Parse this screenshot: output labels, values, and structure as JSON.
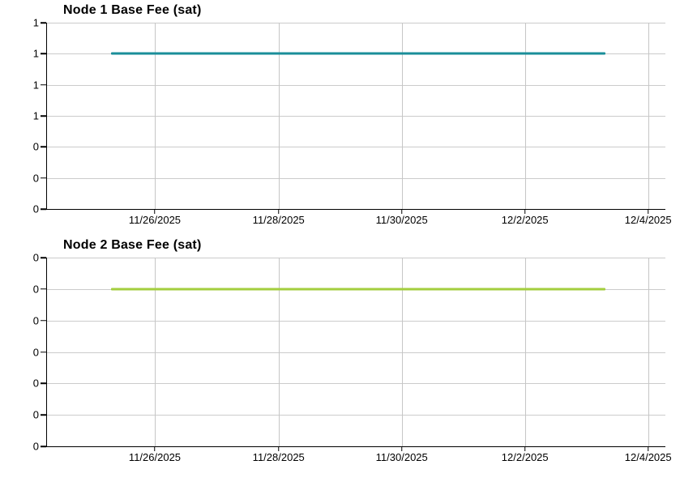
{
  "charts": [
    {
      "title": "Node 1 Base Fee (sat)",
      "line_color": "#1a8e99",
      "y_labels": [
        "1",
        "1",
        "1",
        "1",
        "0",
        "0",
        "0"
      ],
      "x_labels": [
        "11/26/2025",
        "11/28/2025",
        "11/30/2025",
        "12/2/2025",
        "12/4/2025"
      ]
    },
    {
      "title": "Node 2 Base Fee (sat)",
      "line_color": "#a3ce3e",
      "y_labels": [
        "0",
        "0",
        "0",
        "0",
        "0",
        "0",
        "0"
      ],
      "x_labels": [
        "11/26/2025",
        "11/28/2025",
        "11/30/2025",
        "12/2/2025",
        "12/4/2025"
      ]
    }
  ],
  "chart_data": [
    {
      "type": "line",
      "title": "Node 1 Base Fee (sat)",
      "xlabel": "",
      "ylabel": "",
      "x_ticks": [
        "11/26/2025",
        "11/28/2025",
        "11/30/2025",
        "12/2/2025",
        "12/4/2025"
      ],
      "y_tick_labels_top_to_bottom": [
        "1",
        "1",
        "1",
        "1",
        "0",
        "0",
        "0"
      ],
      "ylim": [
        0,
        1.2
      ],
      "grid": true,
      "legend": false,
      "series": [
        {
          "name": "Node 1 Base Fee",
          "color": "#1a8e99",
          "x_start": "11/25/2025",
          "x_end": "12/3/2025",
          "constant_value": 1
        }
      ]
    },
    {
      "type": "line",
      "title": "Node 2 Base Fee (sat)",
      "xlabel": "",
      "ylabel": "",
      "x_ticks": [
        "11/26/2025",
        "11/28/2025",
        "11/30/2025",
        "12/2/2025",
        "12/4/2025"
      ],
      "y_tick_labels_top_to_bottom": [
        "0",
        "0",
        "0",
        "0",
        "0",
        "0",
        "0"
      ],
      "ylim": null,
      "grid": true,
      "legend": false,
      "note": "all y tick labels display 0; flat line sits at the second gridline from the top (5/6 of axis height), same relative position as chart 1",
      "series": [
        {
          "name": "Node 2 Base Fee",
          "color": "#a3ce3e",
          "x_start": "11/25/2025",
          "x_end": "12/3/2025",
          "constant_value": 0
        }
      ]
    }
  ]
}
